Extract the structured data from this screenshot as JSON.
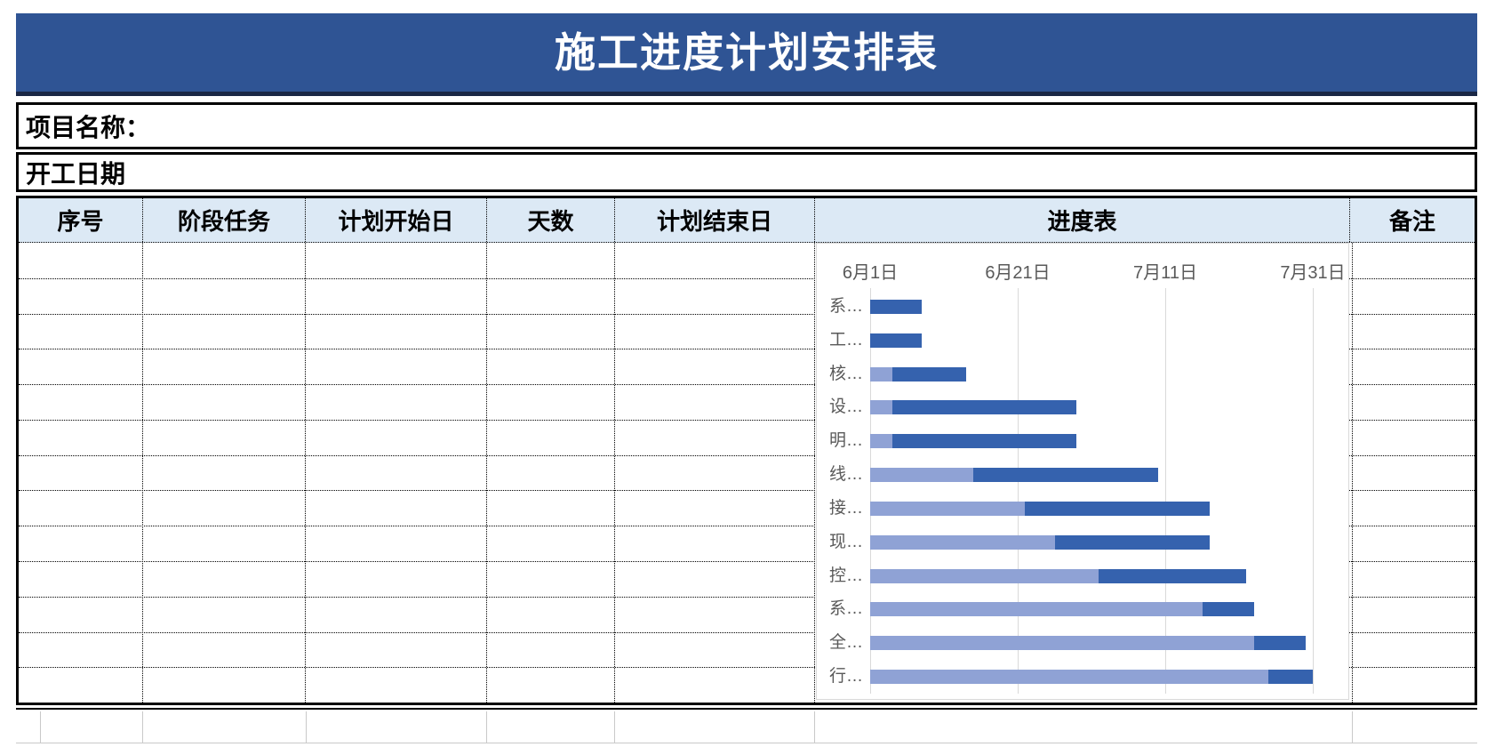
{
  "page_title": "施工进度计划安排表",
  "project_name_label": "项目名称：",
  "project_name_value": "",
  "start_date_label": "开工日期",
  "start_date_value": "",
  "table": {
    "headers": [
      "序号",
      "阶段任务",
      "计划开始日",
      "天数",
      "计划结束日",
      "进度表",
      "备注"
    ],
    "empty_rows": 13
  },
  "chart_data": {
    "type": "bar",
    "subtype": "horizontal-stacked-gantt",
    "title": "",
    "legend": false,
    "grid": true,
    "x_axis": {
      "unit": "days-from-6月1日",
      "tick_labels": [
        "6月1日",
        "6月21日",
        "7月11日",
        "7月31日"
      ],
      "tick_days": [
        0,
        20,
        40,
        60
      ],
      "domain_days": [
        0,
        65
      ]
    },
    "categories": [
      "系…",
      "工…",
      "核…",
      "设…",
      "明…",
      "线…",
      "接…",
      "现…",
      "控…",
      "系…",
      "全…",
      "行…"
    ],
    "series": [
      {
        "name": "start-offset",
        "role": "offset",
        "color": "#8FA2D5",
        "values": [
          0,
          0,
          3,
          3,
          3,
          14,
          21,
          25,
          31,
          45,
          52,
          54
        ]
      },
      {
        "name": "duration",
        "role": "duration",
        "color": "#3562AE",
        "values": [
          7,
          7,
          10,
          25,
          25,
          25,
          25,
          21,
          20,
          7,
          7,
          6
        ]
      }
    ]
  },
  "colors": {
    "accent_blue": "#2F5494",
    "accent_dark_edge": "#1A2745",
    "header_bg": "#DCE9F5",
    "bar_light": "#8FA2D5",
    "bar_dark": "#3562AE",
    "chart_text": "#595959",
    "chart_gridline": "#D9D9D9",
    "residue_grid": "#C9C9C9"
  }
}
